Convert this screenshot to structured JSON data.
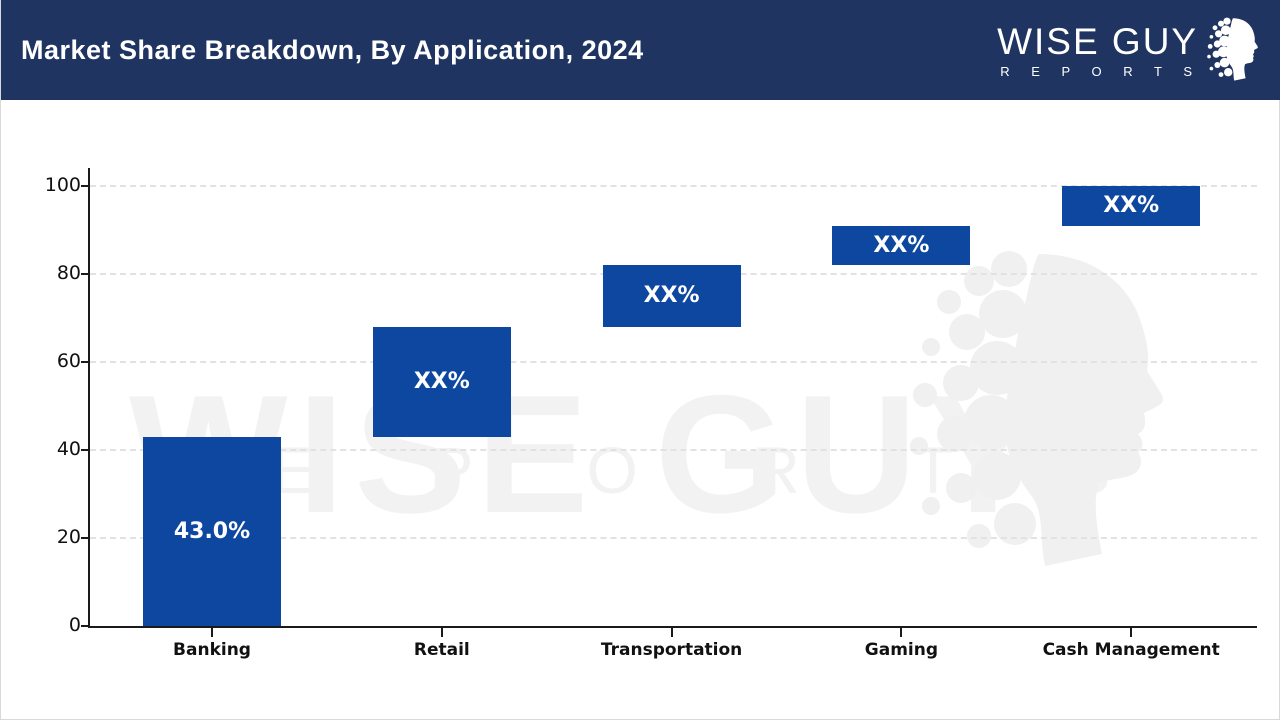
{
  "header": {
    "title": "Market Share Breakdown, By Application, 2024",
    "background": "#1f3461",
    "logo_line1": "WISE GUY",
    "logo_line2": "R E P O R T S"
  },
  "watermark": {
    "line1": "WISE GUY",
    "line2": "E P O R T S"
  },
  "chart_data": {
    "type": "bar",
    "subtype": "waterfall",
    "title": "Market Share Breakdown, By Application, 2024",
    "categories": [
      "Banking",
      "Retail",
      "Transportation",
      "Gaming",
      "Cash Management"
    ],
    "segments": [
      {
        "category": "Banking",
        "start": 0,
        "end": 43,
        "label": "43.0%"
      },
      {
        "category": "Retail",
        "start": 43,
        "end": 68,
        "label": "XX%"
      },
      {
        "category": "Transportation",
        "start": 68,
        "end": 82,
        "label": "XX%"
      },
      {
        "category": "Gaming",
        "start": 82,
        "end": 91,
        "label": "XX%"
      },
      {
        "category": "Cash Management",
        "start": 91,
        "end": 100,
        "label": "XX%"
      }
    ],
    "yticks": [
      0,
      20,
      40,
      60,
      80,
      100
    ],
    "ylim": [
      0,
      104
    ],
    "xlabel": "",
    "ylabel": "",
    "bar_color": "#0d479f",
    "value_label_color": "#ffffff",
    "grid": "horizontal-dashed",
    "legend": "none"
  }
}
